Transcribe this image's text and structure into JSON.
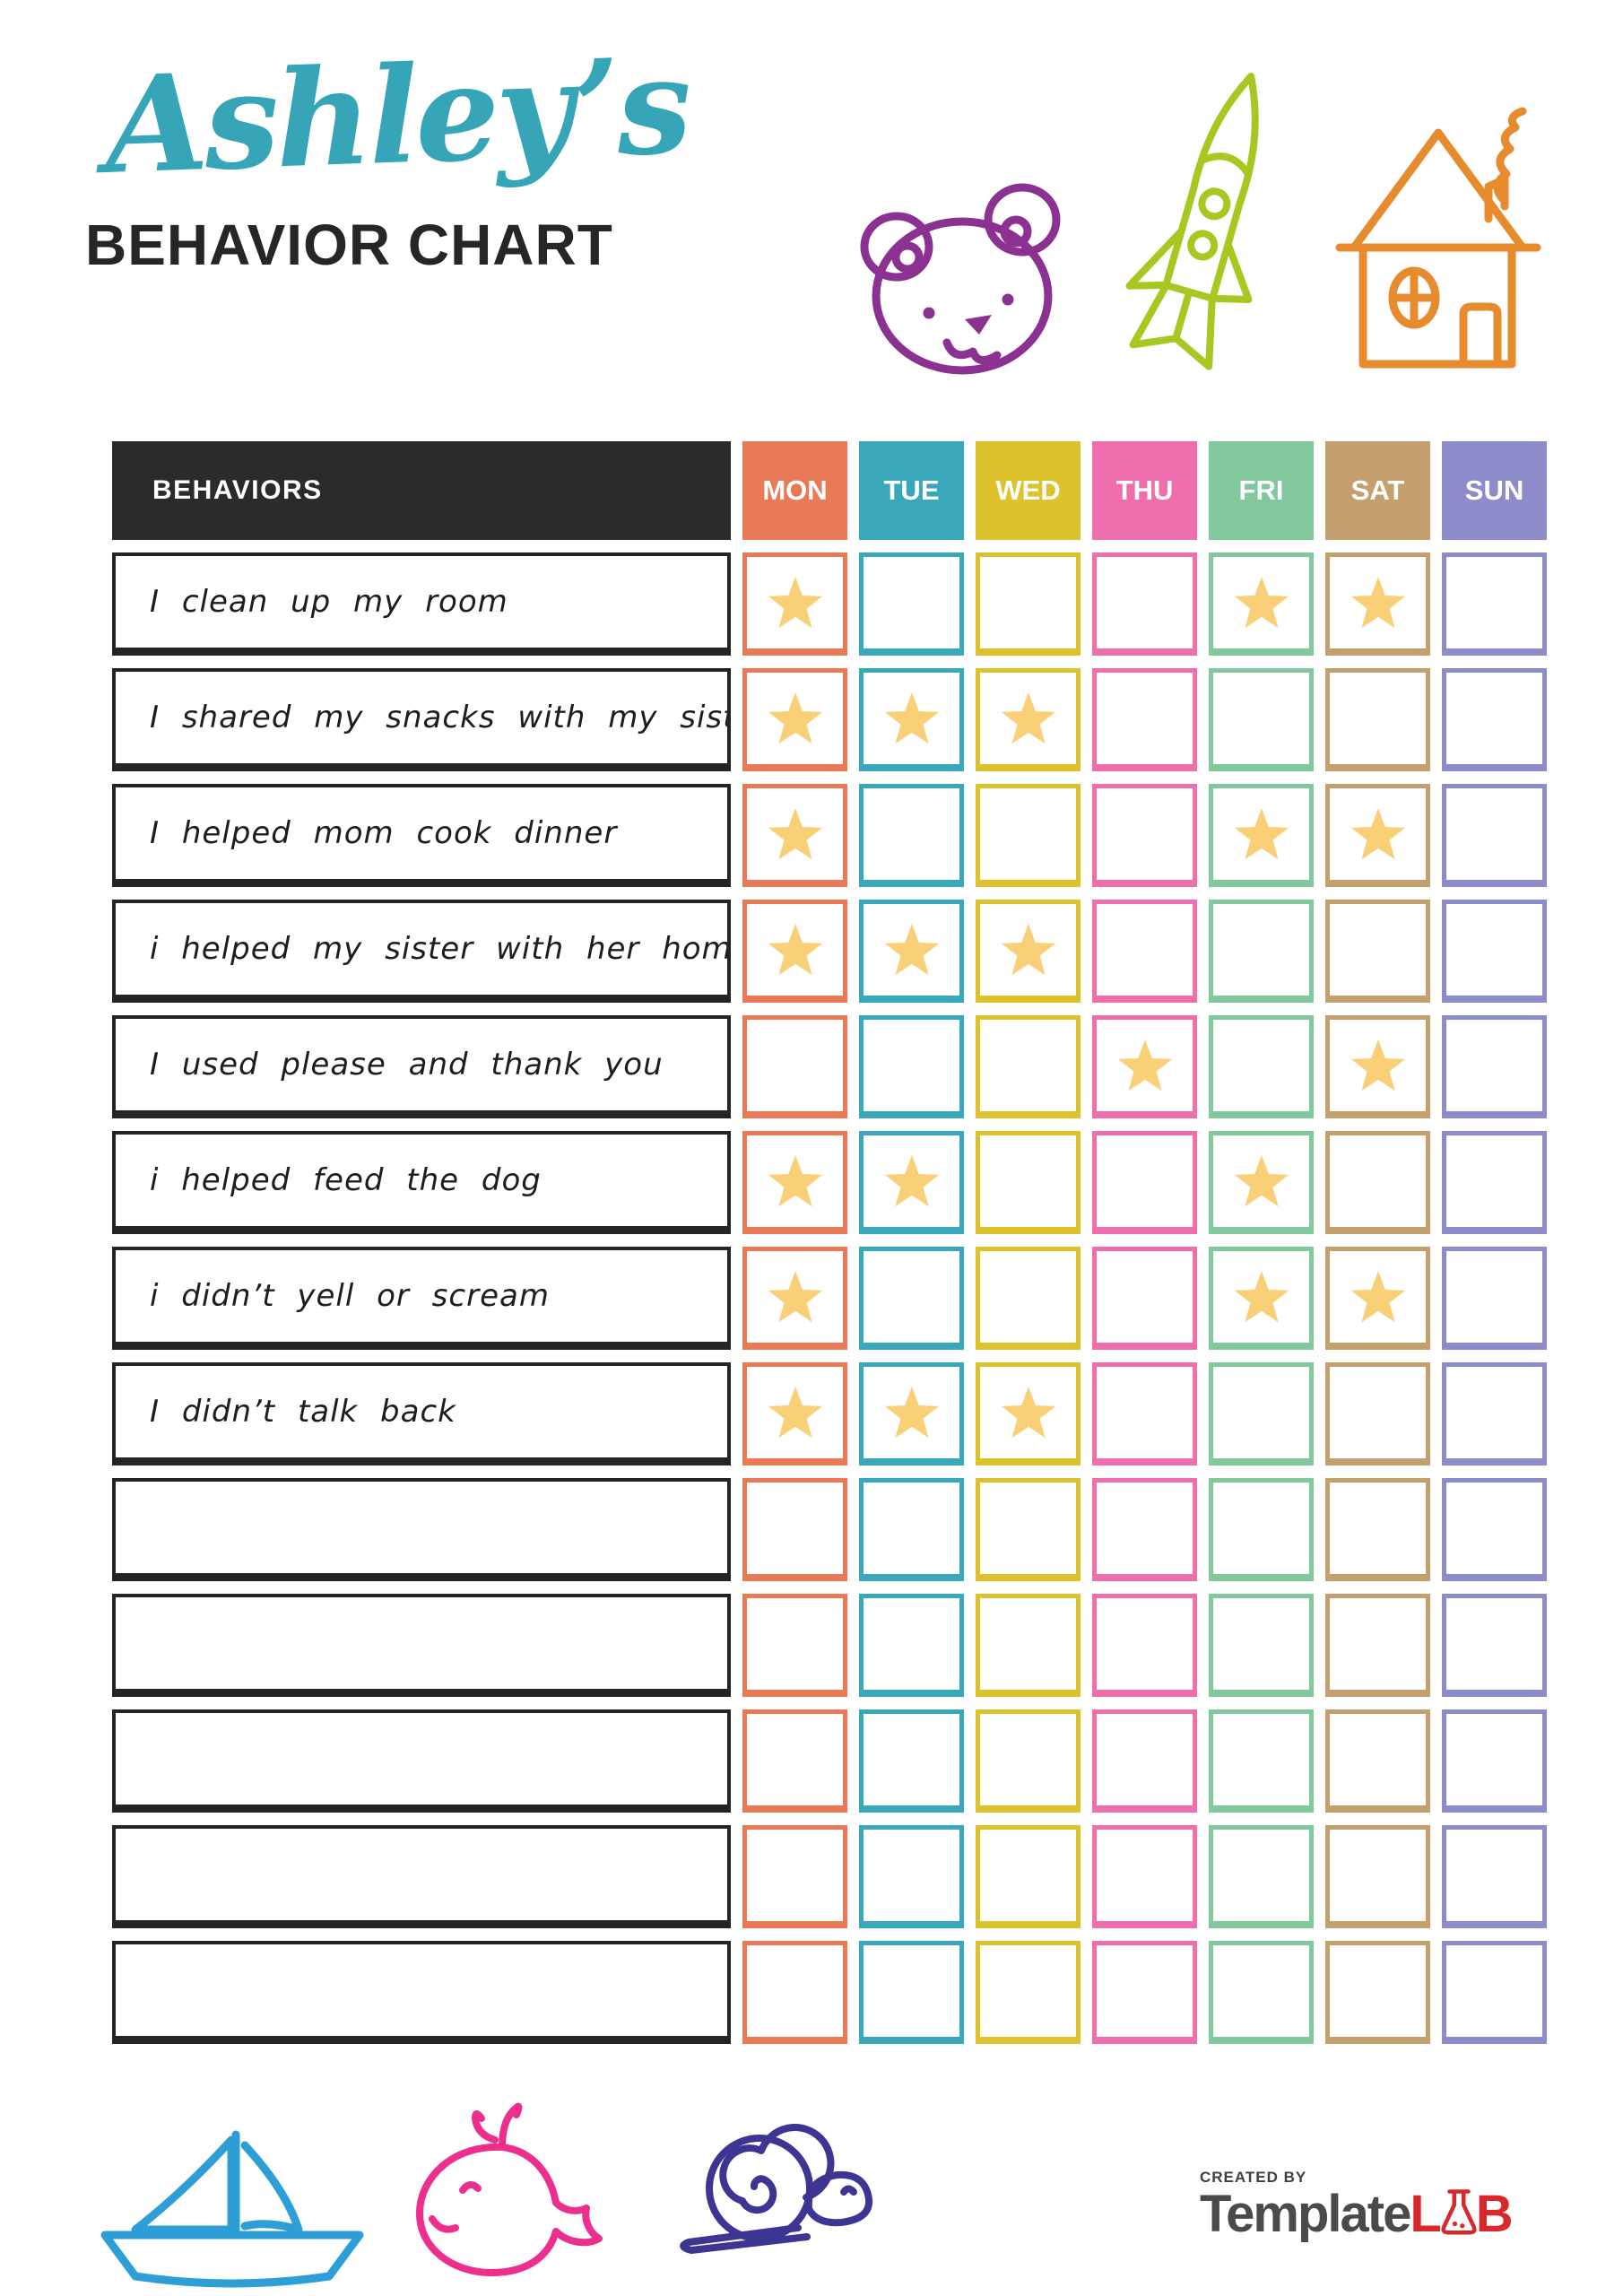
{
  "header": {
    "script_title": "Ashley’s",
    "main_title": "BEHAVIOR CHART"
  },
  "colors": {
    "title_teal": "#36a5b8",
    "heading_dark": "#262626",
    "header_bg": "#2b2b2b",
    "star": "#f9d078",
    "bear_purple": "#8b3191",
    "rocket_green": "#a6c820",
    "house_orange": "#e78b2f",
    "boat_blue": "#2d9fd6",
    "whale_pink": "#ec2f8d",
    "snail_indigo": "#3c3692",
    "logo_gray": "#4a4a4a",
    "logo_red": "#d7282c"
  },
  "table": {
    "behaviors_header": "BEHAVIORS",
    "days": [
      {
        "label": "MON",
        "color": "#e87a58"
      },
      {
        "label": "TUE",
        "color": "#39a8ba"
      },
      {
        "label": "WED",
        "color": "#dcc32e"
      },
      {
        "label": "THU",
        "color": "#ef6fae"
      },
      {
        "label": "FRI",
        "color": "#81c89c"
      },
      {
        "label": "SAT",
        "color": "#c5a06f"
      },
      {
        "label": "SUN",
        "color": "#8b8cc9"
      }
    ],
    "rows": [
      {
        "label": "I clean up my room",
        "stars": [
          1,
          0,
          0,
          0,
          1,
          1,
          0
        ]
      },
      {
        "label": "I shared my snacks with my sister",
        "stars": [
          1,
          1,
          1,
          0,
          0,
          0,
          0
        ]
      },
      {
        "label": "I helped mom cook dinner",
        "stars": [
          1,
          0,
          0,
          0,
          1,
          1,
          0
        ]
      },
      {
        "label": "i helped my sister with her homework",
        "stars": [
          1,
          1,
          1,
          0,
          0,
          0,
          0
        ]
      },
      {
        "label": "I used please and thank you",
        "stars": [
          0,
          0,
          0,
          1,
          0,
          1,
          0
        ]
      },
      {
        "label": "i helped feed the dog",
        "stars": [
          1,
          1,
          0,
          0,
          1,
          0,
          0
        ]
      },
      {
        "label": "i didn’t yell or scream",
        "stars": [
          1,
          0,
          0,
          0,
          1,
          1,
          0
        ]
      },
      {
        "label": "I didn’t talk back",
        "stars": [
          1,
          1,
          1,
          0,
          0,
          0,
          0
        ]
      },
      {
        "label": "",
        "stars": [
          0,
          0,
          0,
          0,
          0,
          0,
          0
        ]
      },
      {
        "label": "",
        "stars": [
          0,
          0,
          0,
          0,
          0,
          0,
          0
        ]
      },
      {
        "label": "",
        "stars": [
          0,
          0,
          0,
          0,
          0,
          0,
          0
        ]
      },
      {
        "label": "",
        "stars": [
          0,
          0,
          0,
          0,
          0,
          0,
          0
        ]
      },
      {
        "label": "",
        "stars": [
          0,
          0,
          0,
          0,
          0,
          0,
          0
        ]
      }
    ]
  },
  "footer": {
    "created_by": "CREATED BY",
    "brand_primary": "Template",
    "brand_accent_l": "L",
    "brand_accent_b": "B"
  }
}
